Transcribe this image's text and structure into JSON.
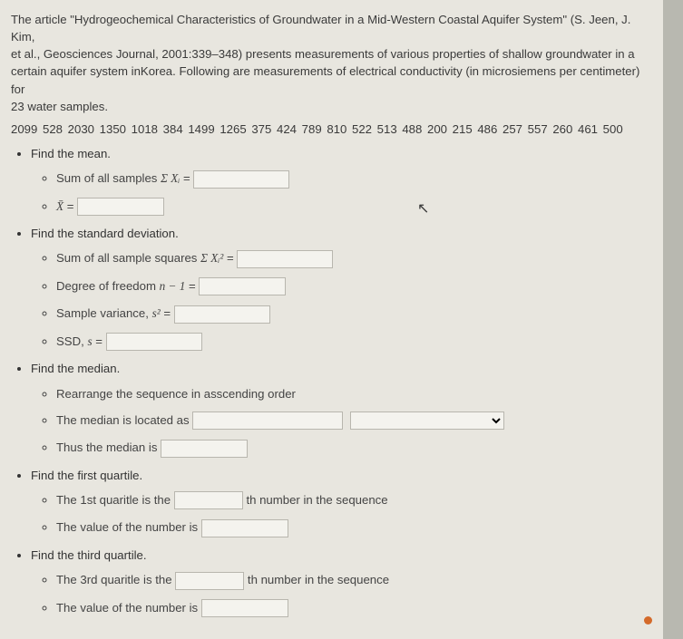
{
  "colors": {
    "page_bg": "#e8e6df",
    "outer_bg": "#b8b8b0",
    "text": "#333333",
    "input_border": "#b8b6ae",
    "input_bg": "#f4f3ee",
    "dot": "#d46a2a"
  },
  "intro": {
    "line1": "The article \"Hydrogeochemical Characteristics of Groundwater in a Mid-Western Coastal Aquifer System\" (S. Jeen, J. Kim,",
    "line2": "et al., Geosciences Journal, 2001:339–348) presents measurements of various properties of shallow groundwater in a",
    "line3": "certain aquifer system inKorea. Following are measurements of electrical conductivity (in microsiemens per centimeter) for",
    "line4": "23 water samples."
  },
  "data_values": "2099 528 2030 1350 1018 384 1499 1265 375 424 789 810 522 513 488 200 215 486 257 557 260 461 500",
  "sections": {
    "mean": {
      "title": "Find the mean.",
      "sum_label_pre": "Sum of all samples ",
      "sum_formula": "Σ Xᵢ",
      "eq": " = ",
      "xbar_formula": "X̄",
      "xbar_eq": " = "
    },
    "std": {
      "title": "Find the standard deviation.",
      "sumsq_label_pre": "Sum of all sample squares ",
      "sumsq_formula": "Σ Xᵢ²",
      "eq": " = ",
      "dof_label": "Degree of freedom ",
      "dof_formula": "n − 1",
      "variance_label": "Sample variance, ",
      "variance_formula": "s²",
      "ssd_label": "SSD, ",
      "ssd_formula": "s"
    },
    "median": {
      "title": "Find the median.",
      "rearrange": "Rearrange the sequence in asscending order",
      "located_label": "The median is located as",
      "thus_label": "Thus the median is"
    },
    "q1": {
      "title": "Find the first quartile.",
      "is_label": "The 1st quaritle is the",
      "th_label": "th number in the sequence",
      "value_label": "The value of the number is"
    },
    "q3": {
      "title": "Find the third quartile.",
      "is_label": "The 3rd quaritle is the",
      "th_label": "th number in the sequence",
      "value_label": "The value of the number is"
    }
  }
}
